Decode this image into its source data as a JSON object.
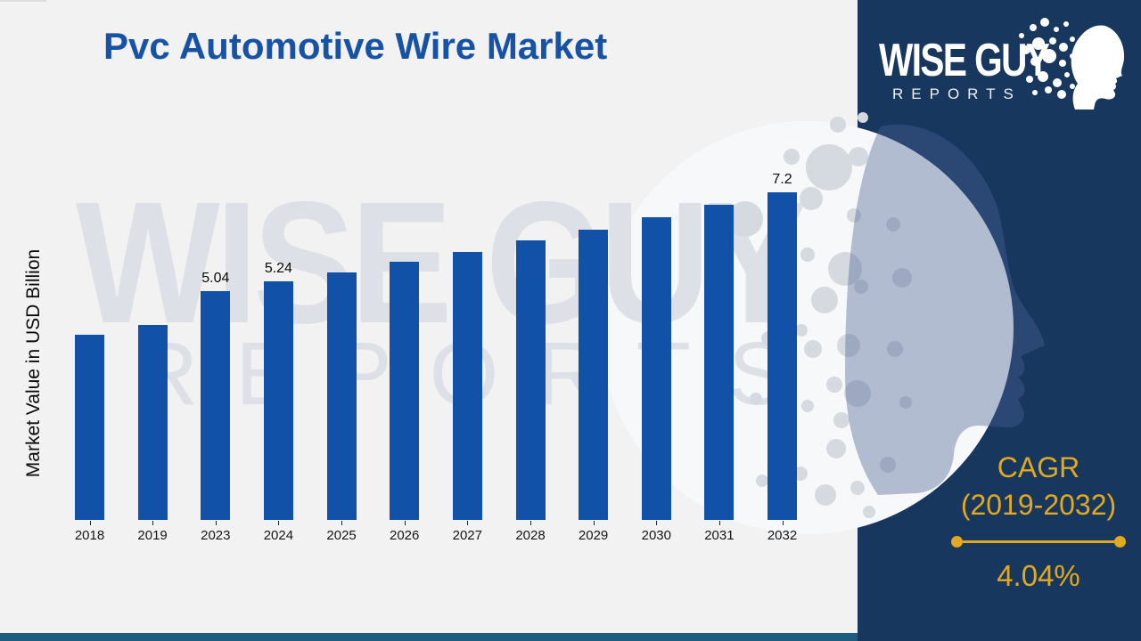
{
  "title": "Pvc Automotive Wire Market",
  "y_axis_label": "Market Value in USD Billion",
  "watermark": {
    "line1": "WISE GUY",
    "line2": "REPORTS"
  },
  "logo": {
    "line1": "WISE GUY",
    "line2": "REPORTS"
  },
  "cagr": {
    "label": "CAGR",
    "range": "(2019-2032)",
    "value": "4.04%"
  },
  "colors": {
    "bg": "#f2f2f2",
    "accent_navy": "#17375e",
    "accent_teal": "#1d5e7e",
    "accent_gold": "#e2a81e",
    "bar_blue": "#1151a7",
    "title_blue": "#1752a5"
  },
  "chart_data": {
    "type": "bar",
    "title": "Pvc Automotive Wire Market",
    "xlabel": "",
    "ylabel": "Market Value in USD Billion",
    "categories": [
      "2018",
      "2019",
      "2023",
      "2024",
      "2025",
      "2026",
      "2027",
      "2028",
      "2029",
      "2030",
      "2031",
      "2032"
    ],
    "values": [
      4.07,
      4.29,
      5.04,
      5.24,
      5.45,
      5.67,
      5.9,
      6.14,
      6.39,
      6.65,
      6.92,
      7.2
    ],
    "data_labels": [
      "",
      "",
      "5.04",
      "5.24",
      "",
      "",
      "",
      "",
      "",
      "",
      "",
      "7.2"
    ],
    "ylim": [
      0,
      7.6
    ],
    "grid": false,
    "legend": "none",
    "bar_color": "#1151a7",
    "annotation": "CAGR (2019-2032) 4.04%"
  }
}
